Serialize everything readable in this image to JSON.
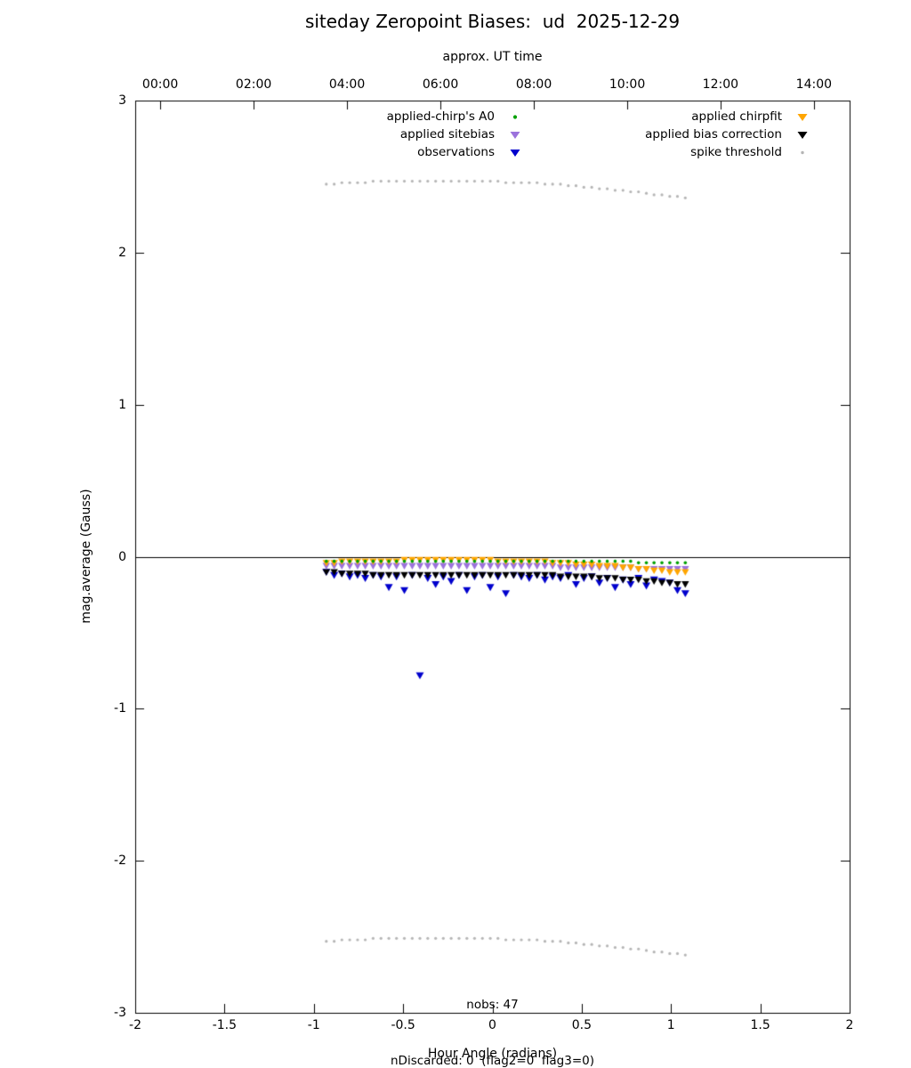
{
  "title": "siteday Zeropoint Biases:  ud  2025-12-29",
  "annotations": {
    "nobs": "nobs: 47",
    "ndiscarded": "nDiscarded: 0  (flag2=0  flag3=0)"
  },
  "legend": {
    "col1": [
      {
        "label": "applied-chirp's A0",
        "marker": "dot",
        "color": "#00a000"
      },
      {
        "label": "applied sitebias",
        "marker": "triangle-down",
        "color": "#9b72dc"
      },
      {
        "label": "observations",
        "marker": "triangle-down",
        "color": "#0000cd"
      }
    ],
    "col2": [
      {
        "label": "applied chirpfit",
        "marker": "triangle-down",
        "color": "#ffa500"
      },
      {
        "label": "applied bias correction",
        "marker": "triangle-down",
        "color": "#000000"
      },
      {
        "label": "spike threshold",
        "marker": "dot",
        "color": "#b5b5b5"
      }
    ]
  },
  "chart_data": {
    "type": "scatter",
    "title": "siteday Zeropoint Biases:  ud  2025-12-29",
    "xlabel": "Hour Angle (radians)",
    "ylabel": "mag.average (Gauss)",
    "x2label": "approx. UT time",
    "xlim": [
      -2,
      2
    ],
    "ylim": [
      -3,
      3
    ],
    "zero_line": 0,
    "grid": false,
    "x_ticks": {
      "values": [
        -2,
        -1.5,
        -1,
        -0.5,
        0,
        0.5,
        1,
        1.5,
        2
      ],
      "labels": [
        "-2",
        "-1.5",
        "-1",
        "-0.5",
        "0",
        "0.5",
        "1",
        "1.5",
        "2"
      ]
    },
    "y_ticks": {
      "values": [
        -3,
        -2,
        -1,
        0,
        1,
        2,
        3
      ],
      "labels": [
        "-3",
        "-2",
        "-1",
        "0",
        "1",
        "2",
        "3"
      ]
    },
    "ut_ticks": {
      "values": [
        -1.86,
        -1.337,
        -0.814,
        -0.291,
        0.232,
        0.755,
        1.277,
        1.8
      ],
      "labels": [
        "00:00",
        "02:00",
        "04:00",
        "06:00",
        "08:00",
        "10:00",
        "12:00",
        "14:00"
      ]
    },
    "x": [
      -0.93,
      -0.886,
      -0.843,
      -0.799,
      -0.755,
      -0.712,
      -0.668,
      -0.624,
      -0.58,
      -0.537,
      -0.493,
      -0.449,
      -0.406,
      -0.362,
      -0.318,
      -0.275,
      -0.231,
      -0.187,
      -0.143,
      -0.1,
      -0.056,
      -0.012,
      0.031,
      0.075,
      0.119,
      0.162,
      0.206,
      0.25,
      0.294,
      0.337,
      0.381,
      0.425,
      0.468,
      0.512,
      0.556,
      0.599,
      0.643,
      0.687,
      0.731,
      0.774,
      0.818,
      0.862,
      0.905,
      0.949,
      0.993,
      1.036,
      1.08
    ],
    "series": [
      {
        "name": "observations",
        "marker": "triangle-down",
        "color": "#0000cd",
        "size": 4.5,
        "y": [
          -0.1,
          -0.12,
          -0.11,
          -0.13,
          -0.12,
          -0.14,
          -0.12,
          -0.13,
          -0.2,
          -0.13,
          -0.22,
          -0.12,
          -0.78,
          -0.14,
          -0.18,
          -0.13,
          -0.16,
          -0.12,
          -0.22,
          -0.13,
          -0.12,
          -0.2,
          -0.13,
          -0.24,
          -0.12,
          -0.13,
          -0.14,
          -0.12,
          -0.15,
          -0.13,
          -0.14,
          -0.12,
          -0.18,
          -0.14,
          -0.13,
          -0.17,
          -0.14,
          -0.2,
          -0.15,
          -0.18,
          -0.14,
          -0.19,
          -0.15,
          -0.16,
          -0.17,
          -0.22,
          -0.24
        ]
      },
      {
        "name": "applied bias correction",
        "marker": "triangle-down",
        "color": "#000000",
        "size": 4.2,
        "y": [
          -0.1,
          -0.1,
          -0.11,
          -0.11,
          -0.11,
          -0.11,
          -0.12,
          -0.12,
          -0.12,
          -0.12,
          -0.12,
          -0.12,
          -0.12,
          -0.12,
          -0.12,
          -0.12,
          -0.12,
          -0.12,
          -0.12,
          -0.12,
          -0.12,
          -0.12,
          -0.12,
          -0.12,
          -0.12,
          -0.12,
          -0.12,
          -0.12,
          -0.12,
          -0.12,
          -0.13,
          -0.13,
          -0.13,
          -0.13,
          -0.13,
          -0.14,
          -0.14,
          -0.14,
          -0.15,
          -0.15,
          -0.15,
          -0.16,
          -0.16,
          -0.17,
          -0.17,
          -0.18,
          -0.18
        ]
      },
      {
        "name": "applied sitebias",
        "marker": "triangle-down",
        "color": "#9b72dc",
        "size": 4.2,
        "y": [
          -0.06,
          -0.06,
          -0.06,
          -0.06,
          -0.06,
          -0.06,
          -0.06,
          -0.06,
          -0.06,
          -0.06,
          -0.06,
          -0.06,
          -0.06,
          -0.06,
          -0.06,
          -0.06,
          -0.06,
          -0.06,
          -0.06,
          -0.06,
          -0.06,
          -0.06,
          -0.06,
          -0.06,
          -0.06,
          -0.06,
          -0.06,
          -0.06,
          -0.06,
          -0.06,
          -0.07,
          -0.07,
          -0.07,
          -0.07,
          -0.07,
          -0.07,
          -0.07,
          -0.07,
          -0.07,
          -0.07,
          -0.08,
          -0.08,
          -0.08,
          -0.08,
          -0.08,
          -0.08,
          -0.08
        ]
      },
      {
        "name": "applied chirpfit",
        "marker": "triangle-down",
        "color": "#ffa500",
        "size": 4.2,
        "y": [
          -0.04,
          -0.04,
          -0.03,
          -0.03,
          -0.03,
          -0.03,
          -0.03,
          -0.03,
          -0.03,
          -0.03,
          -0.02,
          -0.02,
          -0.02,
          -0.02,
          -0.02,
          -0.02,
          -0.02,
          -0.02,
          -0.02,
          -0.02,
          -0.02,
          -0.02,
          -0.03,
          -0.03,
          -0.03,
          -0.03,
          -0.03,
          -0.03,
          -0.03,
          -0.04,
          -0.04,
          -0.04,
          -0.05,
          -0.05,
          -0.05,
          -0.06,
          -0.06,
          -0.06,
          -0.07,
          -0.07,
          -0.08,
          -0.08,
          -0.09,
          -0.09,
          -0.1,
          -0.1,
          -0.1
        ]
      },
      {
        "name": "applied-chirp's A0",
        "marker": "dot",
        "color": "#00a000",
        "size": 1.8,
        "y": [
          -0.03,
          -0.03,
          -0.03,
          -0.03,
          -0.03,
          -0.03,
          -0.03,
          -0.03,
          -0.03,
          -0.03,
          -0.03,
          -0.03,
          -0.03,
          -0.03,
          -0.03,
          -0.03,
          -0.03,
          -0.03,
          -0.03,
          -0.03,
          -0.03,
          -0.03,
          -0.03,
          -0.03,
          -0.03,
          -0.03,
          -0.03,
          -0.03,
          -0.03,
          -0.03,
          -0.03,
          -0.03,
          -0.03,
          -0.03,
          -0.03,
          -0.03,
          -0.03,
          -0.03,
          -0.03,
          -0.03,
          -0.04,
          -0.04,
          -0.04,
          -0.04,
          -0.04,
          -0.04,
          -0.04
        ]
      },
      {
        "name": "spike threshold (upper)",
        "marker": "dot",
        "color": "#b5b5b5",
        "size": 1.6,
        "y": [
          2.45,
          2.45,
          2.46,
          2.46,
          2.46,
          2.46,
          2.47,
          2.47,
          2.47,
          2.47,
          2.47,
          2.47,
          2.47,
          2.47,
          2.47,
          2.47,
          2.47,
          2.47,
          2.47,
          2.47,
          2.47,
          2.47,
          2.47,
          2.46,
          2.46,
          2.46,
          2.46,
          2.46,
          2.45,
          2.45,
          2.45,
          2.44,
          2.44,
          2.43,
          2.43,
          2.42,
          2.42,
          2.41,
          2.41,
          2.4,
          2.4,
          2.39,
          2.38,
          2.38,
          2.37,
          2.37,
          2.36
        ]
      },
      {
        "name": "spike threshold (lower)",
        "marker": "dot",
        "color": "#b5b5b5",
        "size": 1.6,
        "y": [
          -2.53,
          -2.53,
          -2.52,
          -2.52,
          -2.52,
          -2.52,
          -2.51,
          -2.51,
          -2.51,
          -2.51,
          -2.51,
          -2.51,
          -2.51,
          -2.51,
          -2.51,
          -2.51,
          -2.51,
          -2.51,
          -2.51,
          -2.51,
          -2.51,
          -2.51,
          -2.51,
          -2.52,
          -2.52,
          -2.52,
          -2.52,
          -2.52,
          -2.53,
          -2.53,
          -2.53,
          -2.54,
          -2.54,
          -2.55,
          -2.55,
          -2.56,
          -2.56,
          -2.57,
          -2.57,
          -2.58,
          -2.58,
          -2.59,
          -2.6,
          -2.6,
          -2.61,
          -2.61,
          -2.62
        ]
      }
    ]
  }
}
